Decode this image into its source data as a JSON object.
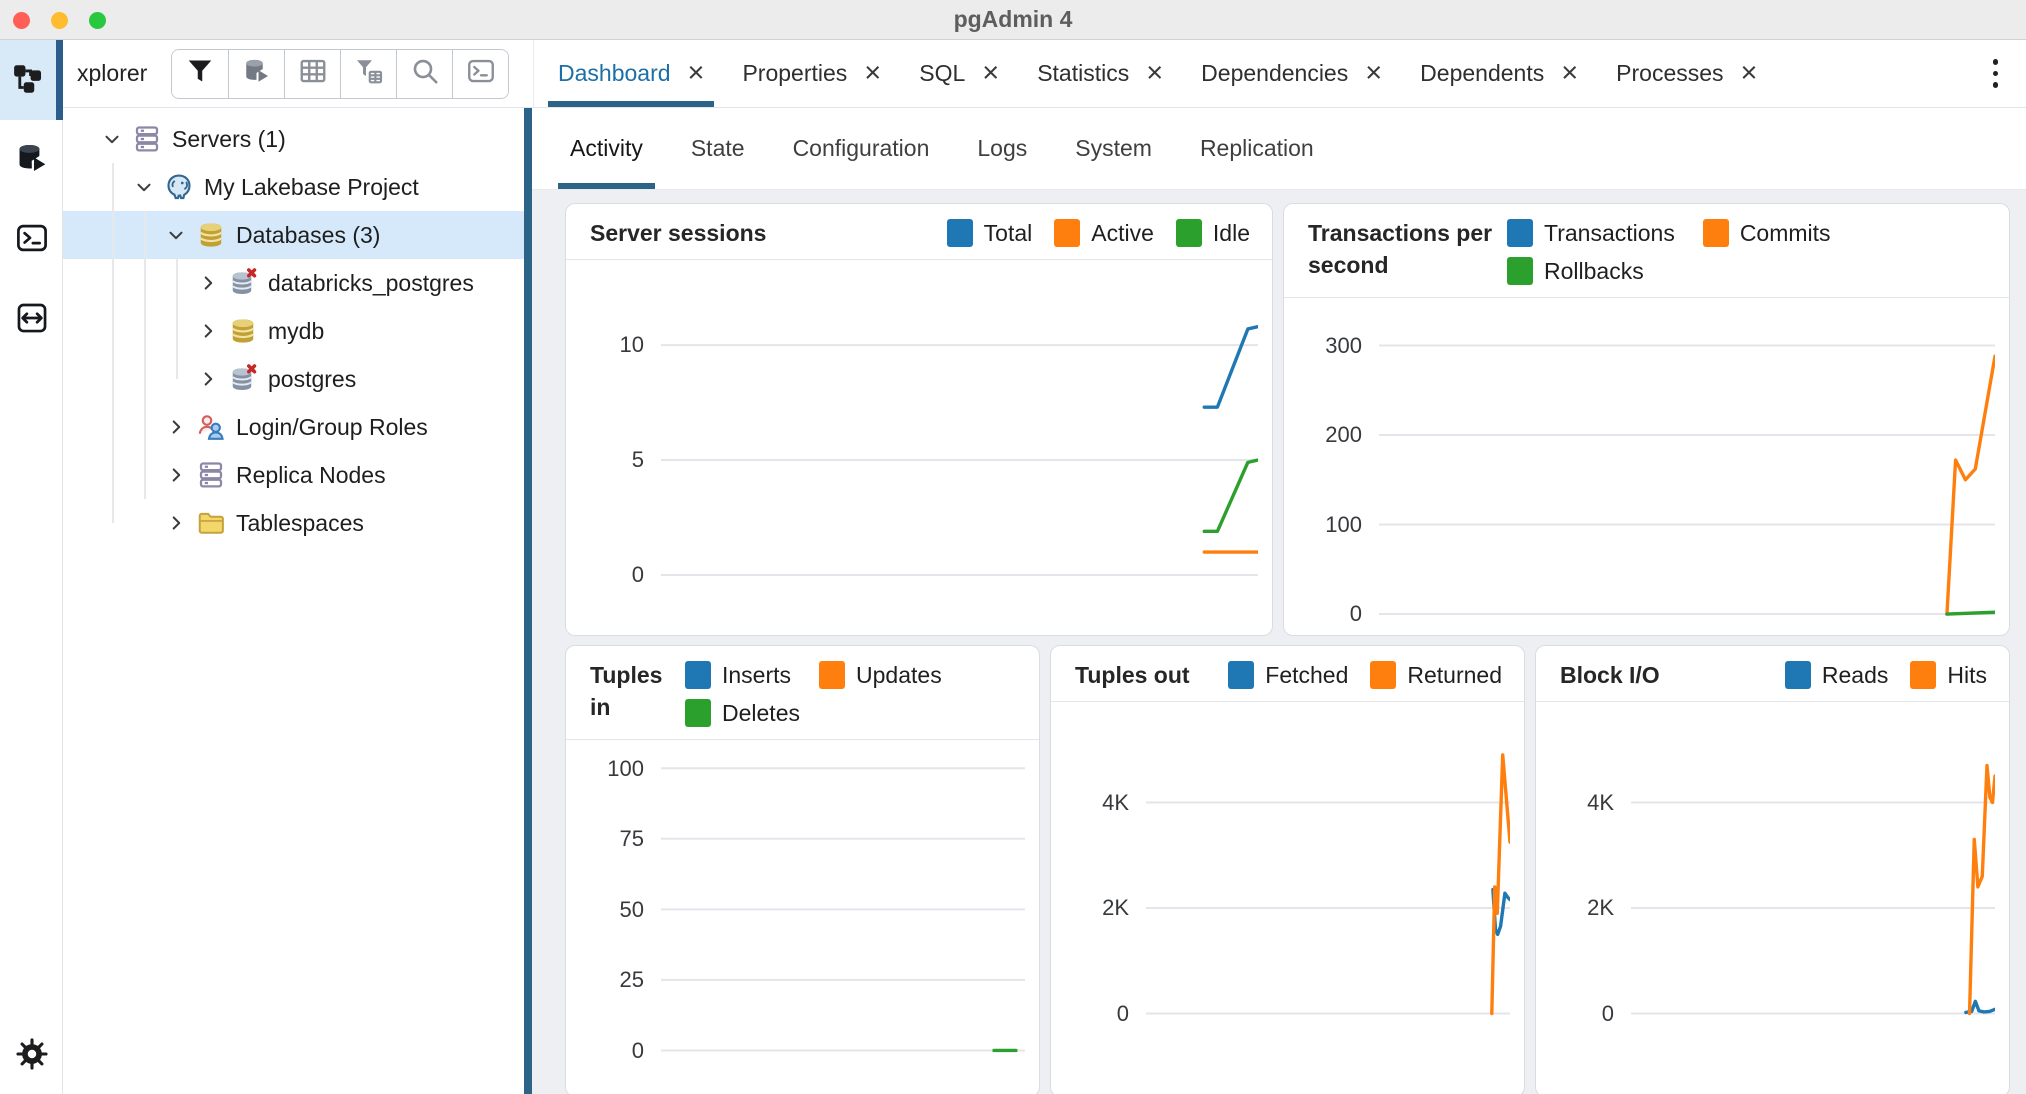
{
  "window": {
    "title": "pgAdmin 4",
    "traffic_lights": [
      {
        "name": "close-window-icon",
        "color": "#ff5f57"
      },
      {
        "name": "minimize-window-icon",
        "color": "#febc2e"
      },
      {
        "name": "zoom-window-icon",
        "color": "#28c840"
      }
    ]
  },
  "rail": {
    "items": [
      {
        "icon": "object-explorer-icon",
        "selected": true
      },
      {
        "icon": "database-quick-icon",
        "selected": false
      },
      {
        "icon": "terminal-icon",
        "selected": false
      },
      {
        "icon": "layout-icon",
        "selected": false
      }
    ],
    "bottom_icon": "gear-icon"
  },
  "explorer": {
    "header_label": "xplorer",
    "toolbar_icons": [
      "filter-icon",
      "db-search-icon",
      "grid-icon",
      "filter-grid-icon",
      "search-icon",
      "console-icon"
    ],
    "tree": [
      {
        "label": "Servers (1)",
        "level": 1,
        "expanded": true,
        "icon": "server-group-icon",
        "selected": false
      },
      {
        "label": "My Lakebase Project",
        "level": 2,
        "expanded": true,
        "icon": "postgres-icon",
        "selected": false
      },
      {
        "label": "Databases (3)",
        "level": 3,
        "expanded": true,
        "icon": "database-gold-icon",
        "selected": true
      },
      {
        "label": "databricks_postgres",
        "level": 4,
        "expanded": false,
        "icon": "database-disconnected-icon",
        "selected": false
      },
      {
        "label": "mydb",
        "level": 4,
        "expanded": false,
        "icon": "database-gold-icon",
        "selected": false
      },
      {
        "label": "postgres",
        "level": 4,
        "expanded": false,
        "icon": "database-disconnected-icon",
        "selected": false
      },
      {
        "label": "Login/Group Roles",
        "level": 3,
        "expanded": false,
        "icon": "roles-icon",
        "selected": false
      },
      {
        "label": "Replica Nodes",
        "level": 3,
        "expanded": false,
        "icon": "replica-nodes-icon",
        "selected": false
      },
      {
        "label": "Tablespaces",
        "level": 3,
        "expanded": false,
        "icon": "tablespace-icon",
        "selected": false
      }
    ]
  },
  "tab_bar": {
    "close_glyph": "×",
    "menu_icon": "kebab-menu-icon",
    "tabs": [
      {
        "label": "Dashboard",
        "active": true
      },
      {
        "label": "Properties",
        "active": false
      },
      {
        "label": "SQL",
        "active": false
      },
      {
        "label": "Statistics",
        "active": false
      },
      {
        "label": "Dependencies",
        "active": false
      },
      {
        "label": "Dependents",
        "active": false
      },
      {
        "label": "Processes",
        "active": false
      }
    ]
  },
  "subtab_bar": {
    "tabs": [
      {
        "label": "Activity",
        "active": true
      },
      {
        "label": "State",
        "active": false
      },
      {
        "label": "Configuration",
        "active": false
      },
      {
        "label": "Logs",
        "active": false
      },
      {
        "label": "System",
        "active": false
      },
      {
        "label": "Replication",
        "active": false
      }
    ]
  },
  "colors": {
    "series_blue": "#1f77b4",
    "series_orange": "#ff7f0e",
    "series_green": "#2ca02c",
    "active_tab_text": "#1d6fa5",
    "active_underline": "#2c6487",
    "selected_row": "#d6e9fb"
  },
  "chart_data": [
    {
      "type": "line",
      "title": "Server sessions",
      "legend_position": "top-right",
      "grid": true,
      "ylim": [
        -2.6,
        13.7
      ],
      "yticks": [
        {
          "value": 10,
          "label": "10"
        },
        {
          "value": 5,
          "label": "5"
        },
        {
          "value": 0,
          "label": "0"
        }
      ],
      "series": [
        {
          "name": "Total",
          "color": "#1f77b4",
          "points": [
            [
              91,
              7.3
            ],
            [
              93.2,
              7.3
            ],
            [
              98.3,
              10.7
            ],
            [
              100,
              10.8
            ]
          ]
        },
        {
          "name": "Active",
          "color": "#ff7f0e",
          "points": [
            [
              91,
              1.0
            ],
            [
              100,
              1.0
            ]
          ]
        },
        {
          "name": "Idle",
          "color": "#2ca02c",
          "points": [
            [
              91,
              1.9
            ],
            [
              93.2,
              1.9
            ],
            [
              98.3,
              4.9
            ],
            [
              100,
              5.0
            ]
          ]
        }
      ]
    },
    {
      "type": "line",
      "title": "Transactions per second",
      "legend_position": "top-right",
      "grid": true,
      "ylim": [
        -23,
        353
      ],
      "yticks": [
        {
          "value": 300,
          "label": "300"
        },
        {
          "value": 200,
          "label": "200"
        },
        {
          "value": 100,
          "label": "100"
        },
        {
          "value": 0,
          "label": "0"
        }
      ],
      "series": [
        {
          "name": "Transactions",
          "color": "#1f77b4",
          "points": []
        },
        {
          "name": "Commits",
          "color": "#ff7f0e",
          "points": [
            [
              92.2,
              0
            ],
            [
              93.6,
              172
            ],
            [
              95.2,
              150
            ],
            [
              96.8,
              162
            ],
            [
              100,
              288
            ]
          ]
        },
        {
          "name": "Rollbacks",
          "color": "#2ca02c",
          "points": [
            [
              92.2,
              0
            ],
            [
              100,
              2
            ]
          ]
        }
      ]
    },
    {
      "type": "line",
      "title": "Tuples in",
      "legend_position": "top-right",
      "grid": true,
      "ylim": [
        -16,
        110
      ],
      "yticks": [
        {
          "value": 100,
          "label": "100"
        },
        {
          "value": 75,
          "label": "75"
        },
        {
          "value": 50,
          "label": "50"
        },
        {
          "value": 25,
          "label": "25"
        },
        {
          "value": 0,
          "label": "0"
        }
      ],
      "series": [
        {
          "name": "Inserts",
          "color": "#1f77b4",
          "points": []
        },
        {
          "name": "Updates",
          "color": "#ff7f0e",
          "points": []
        },
        {
          "name": "Deletes",
          "color": "#2ca02c",
          "points": [
            [
              91.5,
              0
            ],
            [
              97.5,
              0
            ]
          ]
        }
      ]
    },
    {
      "type": "line",
      "title": "Tuples out",
      "legend_position": "top-right",
      "grid": true,
      "ylim": [
        -1560,
        5905
      ],
      "yticks": [
        {
          "value": 4000,
          "label": "4K"
        },
        {
          "value": 2000,
          "label": "2K"
        },
        {
          "value": 0,
          "label": "0"
        }
      ],
      "series": [
        {
          "name": "Fetched",
          "color": "#1f77b4",
          "points": [
            [
              95.3,
              2350
            ],
            [
              96,
              1600
            ],
            [
              96.6,
              1500
            ],
            [
              97.4,
              1650
            ],
            [
              98.6,
              2280
            ],
            [
              99.4,
              2200
            ],
            [
              100,
              2160
            ]
          ]
        },
        {
          "name": "Returned",
          "color": "#ff7f0e",
          "points": [
            [
              95,
              0
            ],
            [
              95.8,
              2400
            ],
            [
              96.5,
              1900
            ],
            [
              98,
              4900
            ],
            [
              100,
              3250
            ]
          ]
        }
      ]
    },
    {
      "type": "line",
      "title": "Block I/O",
      "legend_position": "top-right",
      "grid": true,
      "ylim": [
        -1560,
        5905
      ],
      "yticks": [
        {
          "value": 4000,
          "label": "4K"
        },
        {
          "value": 2000,
          "label": "2K"
        },
        {
          "value": 0,
          "label": "0"
        }
      ],
      "series": [
        {
          "name": "Reads",
          "color": "#1f77b4",
          "points": [
            [
              92,
              20
            ],
            [
              93.6,
              40
            ],
            [
              94.6,
              230
            ],
            [
              95.6,
              50
            ],
            [
              97,
              30
            ],
            [
              98.5,
              40
            ],
            [
              100,
              80
            ]
          ]
        },
        {
          "name": "Hits",
          "color": "#ff7f0e",
          "points": [
            [
              93,
              0
            ],
            [
              94.3,
              3300
            ],
            [
              95.3,
              2400
            ],
            [
              96.5,
              2600
            ],
            [
              97.8,
              4700
            ],
            [
              98.6,
              4100
            ],
            [
              99.3,
              4000
            ],
            [
              100,
              4500
            ]
          ]
        }
      ]
    }
  ]
}
